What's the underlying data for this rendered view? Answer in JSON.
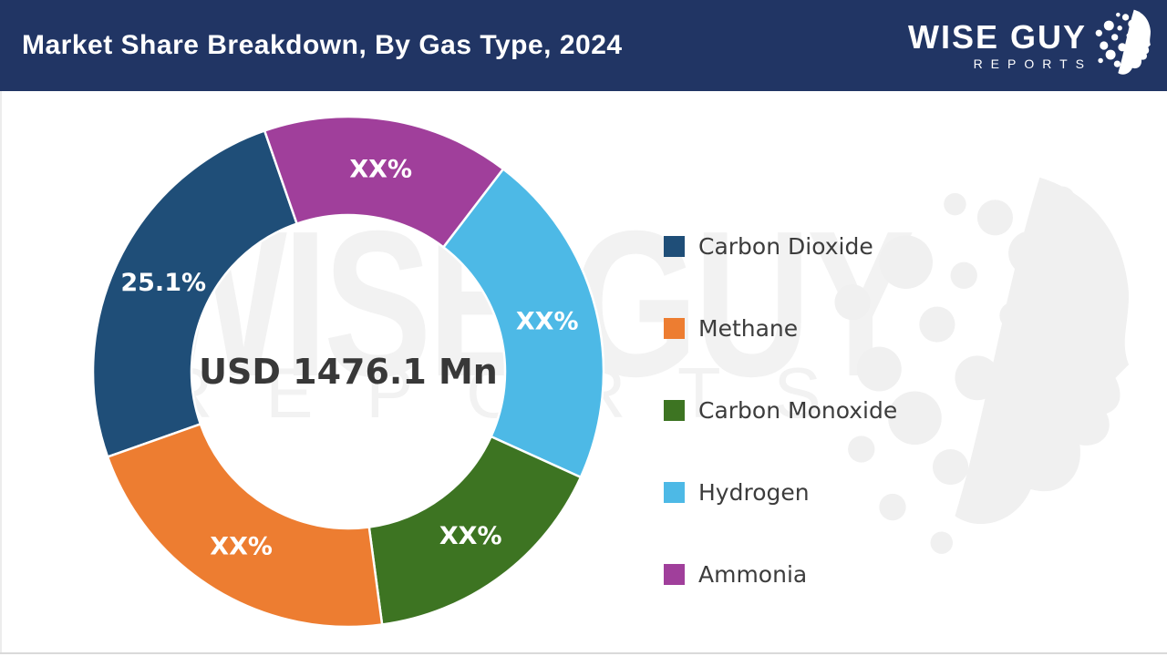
{
  "header": {
    "title": "Market Share Breakdown, By Gas Type, 2024",
    "logo": {
      "line1": "WISE GUY",
      "line2": "REPORTS"
    }
  },
  "watermark": {
    "wordmark": "WISE GUY",
    "reports": "REPORTS"
  },
  "colors": {
    "header_bg": "#213564",
    "carbon_dioxide": "#1f4e78",
    "methane": "#ed7d31",
    "carbon_monoxide": "#3d7422",
    "hydrogen": "#4db9e6",
    "ammonia": "#a03f9b",
    "center_text": "#383838",
    "legend_text": "#3c3c3c",
    "slice_label_text": "#ffffff",
    "watermark": "#f2f2f2"
  },
  "chart_data": {
    "type": "pie",
    "subtype": "donut",
    "title": "Market Share Breakdown, By Gas Type, 2024",
    "center_label": "USD 1476.1 Mn",
    "units": "percent of market share",
    "rotation_from_top_deg": 250.5,
    "draw_order_clockwise": [
      "Carbon Dioxide",
      "Ammonia",
      "Hydrogen",
      "Carbon Monoxide",
      "Methane"
    ],
    "legend_position": "right",
    "slices": [
      {
        "name": "Carbon Dioxide",
        "display_label": "25.1%",
        "value_pct_est": 25.1,
        "color": "#1f4e78"
      },
      {
        "name": "Methane",
        "display_label": "XX%",
        "value_pct_est": 21.7,
        "color": "#ed7d31"
      },
      {
        "name": "Carbon Monoxide",
        "display_label": "XX%",
        "value_pct_est": 16.1,
        "color": "#3d7422"
      },
      {
        "name": "Hydrogen",
        "display_label": "XX%",
        "value_pct_est": 21.4,
        "color": "#4db9e6"
      },
      {
        "name": "Ammonia",
        "display_label": "XX%",
        "value_pct_est": 15.7,
        "color": "#a03f9b"
      }
    ],
    "legend": [
      "Carbon Dioxide",
      "Methane",
      "Carbon Monoxide",
      "Hydrogen",
      "Ammonia"
    ]
  }
}
